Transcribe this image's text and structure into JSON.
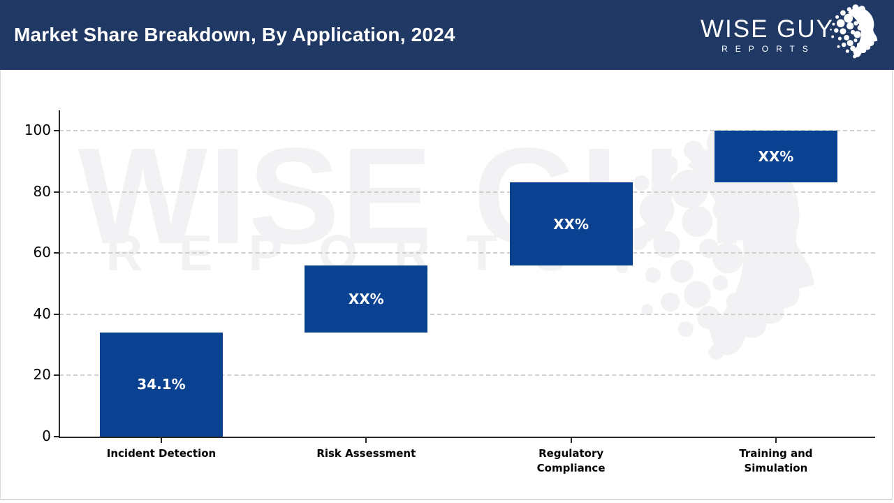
{
  "header": {
    "title": "Market Share Breakdown, By Application, 2024",
    "brand": {
      "name": "WISE GUY",
      "sub": "REPORTS"
    }
  },
  "watermark": {
    "line1": "WISE GUY",
    "line2": "REPORTS"
  },
  "chart_data": {
    "type": "bar",
    "subtype": "waterfall-floating-bars",
    "title": "Market Share Breakdown, By Application, 2024",
    "xlabel": "",
    "ylabel": "",
    "categories": [
      "Incident Detection",
      "Risk Assessment",
      "Regulatory\nCompliance",
      "Training and\nSimulation"
    ],
    "segments": [
      {
        "category": "Incident Detection",
        "start": 0,
        "end": 34.1,
        "label": "34.1%"
      },
      {
        "category": "Risk Assessment",
        "start": 34.1,
        "end": 56,
        "label": "XX%"
      },
      {
        "category": "Regulatory Compliance",
        "start": 56,
        "end": 83,
        "label": "XX%"
      },
      {
        "category": "Training and Simulation",
        "start": 83,
        "end": 100,
        "label": "XX%"
      }
    ],
    "y_ticks": [
      0,
      20,
      40,
      60,
      80,
      100
    ],
    "ylim": [
      0,
      106
    ],
    "grid": "horizontal-dashed",
    "legend": "none",
    "colors": {
      "bar": "#0b4191",
      "bar_label": "#ffffff",
      "header_bg": "#203864",
      "axis": "#262626",
      "gridline": "#cfcfcf",
      "tick_text": "#000000",
      "watermark": "#f2f2f4"
    }
  }
}
